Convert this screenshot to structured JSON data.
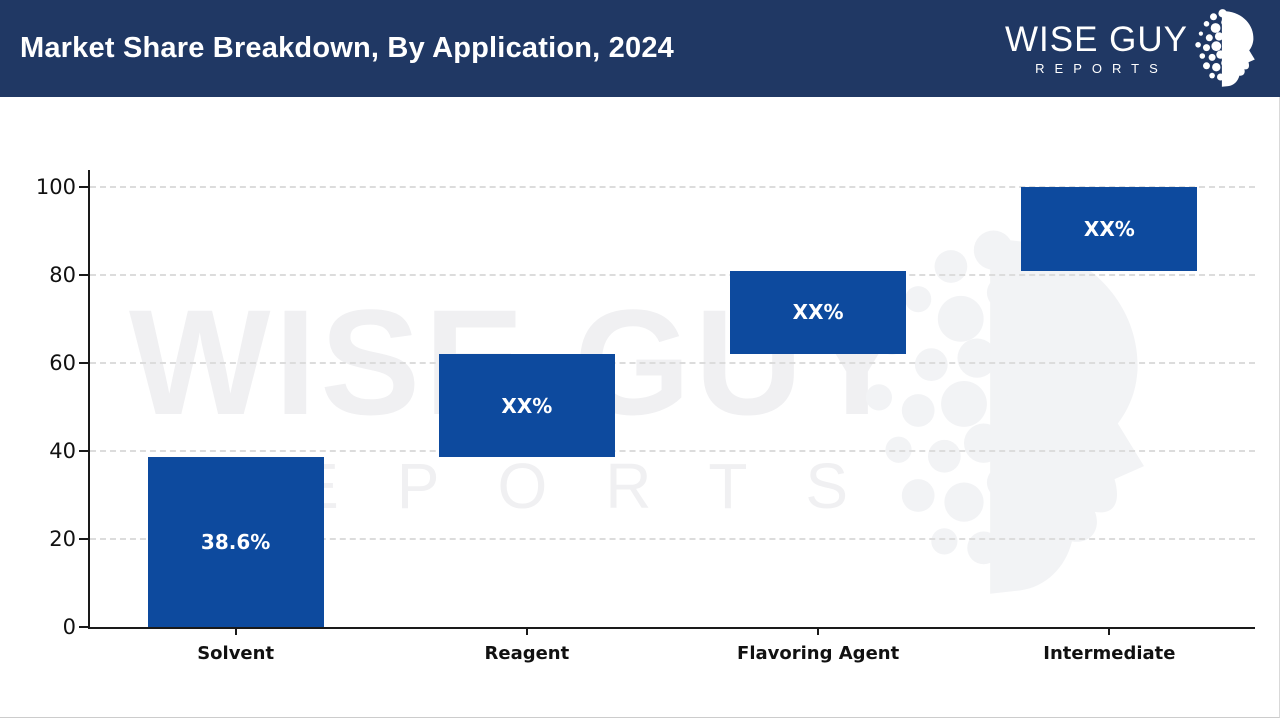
{
  "header": {
    "title": "Market Share Breakdown, By Application, 2024",
    "logo": {
      "line1": "WISE GUY",
      "line2": "REPORTS",
      "icon": "dotted-head-profile-icon"
    }
  },
  "watermark": {
    "line1": "WISE GUY",
    "line2": "REPORTS",
    "icon": "dotted-head-profile-watermark"
  },
  "chart_data": {
    "type": "bar",
    "subtype": "waterfall",
    "title": "Market Share Breakdown, By Application, 2024",
    "categories": [
      "Solvent",
      "Reagent",
      "Flavoring Agent",
      "Intermediate"
    ],
    "bars": [
      {
        "category": "Solvent",
        "start": 0,
        "end": 38.6,
        "label": "38.6%"
      },
      {
        "category": "Reagent",
        "start": 38.6,
        "end": 62,
        "label": "XX%"
      },
      {
        "category": "Flavoring Agent",
        "start": 62,
        "end": 81,
        "label": "XX%"
      },
      {
        "category": "Intermediate",
        "start": 81,
        "end": 100,
        "label": "XX%"
      }
    ],
    "ylim": [
      0,
      100
    ],
    "yticks": [
      0,
      20,
      40,
      60,
      80,
      100
    ],
    "xlabel": "",
    "ylabel": "",
    "grid": "horizontal-dashed",
    "legend": "none",
    "colors": {
      "bar": "#0d4a9e",
      "bar_label": "#ffffff",
      "axis": "#1a1a1a",
      "gridline": "#dcdcdc",
      "header_bg": "#203864",
      "tick_label": "#111111",
      "watermark": "#f0f0f2"
    }
  }
}
